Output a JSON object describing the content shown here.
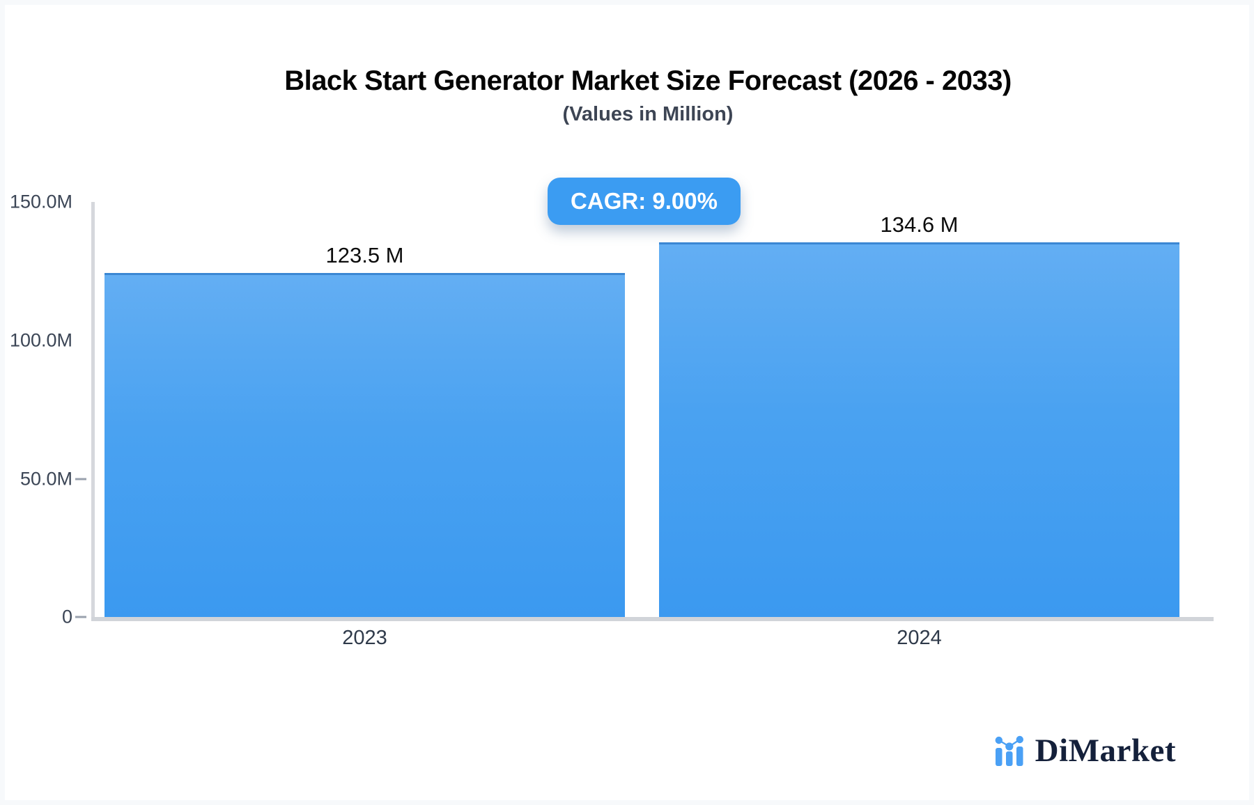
{
  "header": {
    "title": "Black Start Generator Market Size Forecast (2026 - 2033)",
    "subtitle": "(Values in Million)",
    "cagr_badge_label": "CAGR: 9.00%"
  },
  "chart_data": {
    "type": "bar",
    "categories": [
      "2023",
      "2024"
    ],
    "values": [
      123.5,
      134.6
    ],
    "value_labels": [
      "123.5 M",
      "134.6 M"
    ],
    "title": "Black Start Generator Market Size Forecast (2026 - 2033)",
    "subtitle": "(Values in Million)",
    "unit": "Million",
    "xlabel": "",
    "ylabel": "",
    "ylim": [
      0,
      150
    ],
    "y_tick_labels": [
      "150.0M",
      "100.0M",
      "50.0M",
      "0"
    ],
    "grid": false,
    "legend_position": "none",
    "annotations": [
      "CAGR: 9.00%"
    ]
  },
  "colors": {
    "badge_bg": "#3b9cf2",
    "badge_text": "#ffffff",
    "bar_fill_top": "#63aef3",
    "bar_fill_bottom": "#3b99f0",
    "bar_border": "#3b87d3",
    "axis": "#d5d7dc",
    "title_text": "#050505",
    "subtitle_text": "#3d4554",
    "logo_icon_blue": "#4aa0f5",
    "logo_text_navy": "#14203a"
  },
  "brand": {
    "name": "DiMarket",
    "icon": "bar-line-chart-icon"
  }
}
